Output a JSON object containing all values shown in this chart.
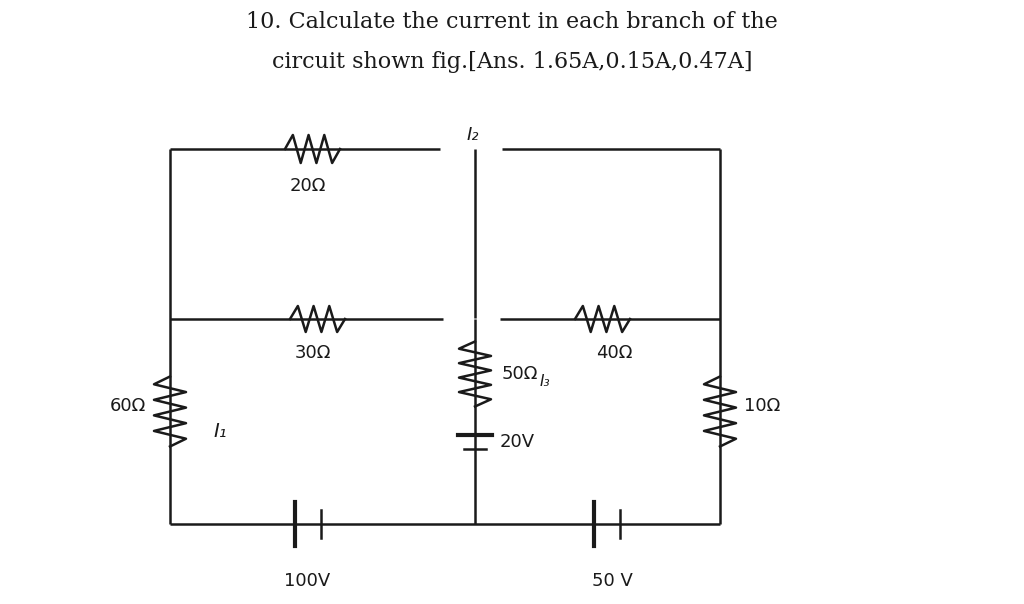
{
  "title_line1": "10. Calculate the current in each branch of the",
  "title_line2": "circuit shown fig.[Ans. 1.65A,0.15A,0.47A]",
  "title_fontsize": 16,
  "bg_color": "#ffffff",
  "line_color": "#1a1a1a",
  "text_color": "#1a1a1a",
  "resistor_60": "60Ω",
  "resistor_30": "30Ω",
  "resistor_20": "20Ω",
  "resistor_40": "40Ω",
  "resistor_50": "50Ω",
  "resistor_10": "10Ω",
  "label_I1": "I₁",
  "label_I2": "I₂",
  "label_I3": "I₃",
  "voltage_100": "100V",
  "voltage_20": "20V",
  "voltage_50": "50 V"
}
